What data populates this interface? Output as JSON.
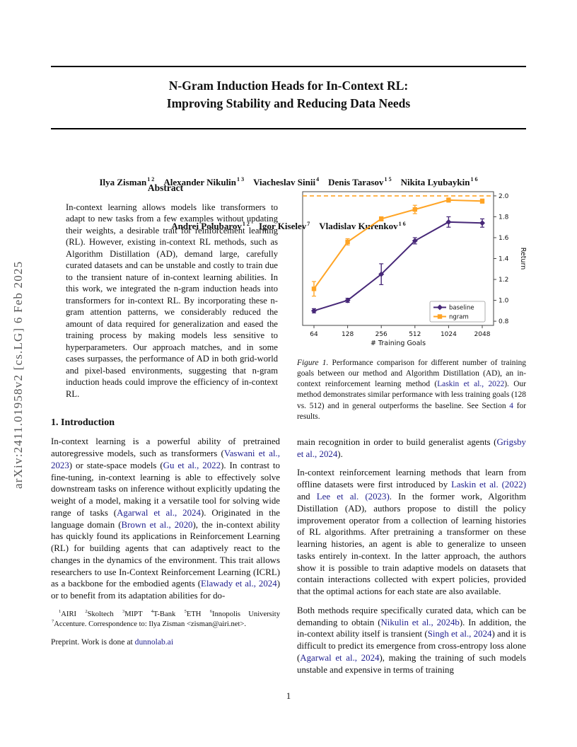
{
  "watermark": {
    "text": "arXiv:2411.01958v2  [cs.LG]  6 Feb 2025"
  },
  "title": {
    "line1": "N-Gram Induction Heads for In-Context RL:",
    "line2": "Improving Stability and Reducing Data Needs"
  },
  "authors": {
    "line1": [
      {
        "t": "Ilya Zisman"
      },
      {
        "t": "1 2",
        "s": "sup"
      },
      {
        "t": " "
      },
      {
        "t": "Alexander Nikulin"
      },
      {
        "t": "1 3",
        "s": "sup"
      },
      {
        "t": " "
      },
      {
        "t": "Viacheslav Sinii"
      },
      {
        "t": "4",
        "s": "sup"
      },
      {
        "t": " "
      },
      {
        "t": "Denis Tarasov"
      },
      {
        "t": "1 5",
        "s": "sup"
      },
      {
        "t": " "
      },
      {
        "t": "Nikita Lyubaykin"
      },
      {
        "t": "1 6",
        "s": "sup"
      }
    ],
    "line2": [
      {
        "t": "Andrei Polubarov"
      },
      {
        "t": "1 2",
        "s": "sup"
      },
      {
        "t": " "
      },
      {
        "t": "Igor Kiselev"
      },
      {
        "t": "7",
        "s": "sup"
      },
      {
        "t": " "
      },
      {
        "t": "Vladislav Kurenkov"
      },
      {
        "t": "1 6",
        "s": "sup"
      }
    ]
  },
  "abstract": {
    "heading": "Abstract",
    "body": "In-context learning allows models like transformers to adapt to new tasks from a few examples without updating their weights, a desirable trait for reinforcement learning (RL). However, existing in-context RL methods, such as Algorithm Distillation (AD), demand large, carefully curated datasets and can be unstable and costly to train due to the transient nature of in-context learning abilities. In this work, we integrated the n-gram induction heads into transformers for in-context RL. By incorporating these n-gram attention patterns, we considerably reduced the amount of data required for generalization and eased the training process by making models less sensitive to hyperparameters. Our approach matches, and in some cases surpasses, the performance of AD in both grid-world and pixel-based environments, suggesting that n-gram induction heads could improve the efficiency of in-context RL."
  },
  "sections": {
    "intro_heading": "1. Introduction"
  },
  "left_column": {
    "intro": [
      {
        "t": "In-context learning is a powerful ability of pretrained autoregressive models, such as transformers ("
      },
      {
        "t": "Vaswani et al., 2023",
        "s": "link"
      },
      {
        "t": ") or state-space models ("
      },
      {
        "t": "Gu et al., 2022",
        "s": "link"
      },
      {
        "t": "). In contrast to fine-tuning, in-context learning is able to effectively solve downstream tasks on inference without explicitly updating the weight of a model, making it a versatile tool for solving wide range of tasks ("
      },
      {
        "t": "Agarwal et al., 2024",
        "s": "link"
      },
      {
        "t": "). Originated in the language domain ("
      },
      {
        "t": "Brown et al., 2020",
        "s": "link"
      },
      {
        "t": "), the in-context ability has quickly found its applications in Reinforcement Learning (RL) for building agents that can adaptively react to the changes in the dynamics of the environment. This trait allows researchers to use In-Context Reinforcement Learning (ICRL) as a backbone for the embodied agents ("
      },
      {
        "t": "Elawady et al., 2024",
        "s": "link"
      },
      {
        "t": ") or to benefit from its adaptation abilities for do-"
      }
    ],
    "footnote": [
      {
        "t": "1",
        "s": "sup"
      },
      {
        "t": "AIRI "
      },
      {
        "t": "2",
        "s": "sup"
      },
      {
        "t": "Skoltech "
      },
      {
        "t": "3",
        "s": "sup"
      },
      {
        "t": "MIPT "
      },
      {
        "t": "4",
        "s": "sup"
      },
      {
        "t": "T-Bank "
      },
      {
        "t": "5",
        "s": "sup"
      },
      {
        "t": "ETH "
      },
      {
        "t": "6",
        "s": "sup"
      },
      {
        "t": "Innopolis University "
      },
      {
        "t": "7",
        "s": "sup"
      },
      {
        "t": "Accenture. Correspondence to: Ilya Zisman <zisman@airi.net>."
      }
    ],
    "preprint": [
      {
        "t": "Preprint. Work is done at "
      },
      {
        "t": "dunnolab.ai",
        "s": "link"
      }
    ]
  },
  "right_column": {
    "caption": [
      {
        "t": "Figure 1.",
        "s": "italic"
      },
      {
        "t": " Performance comparison for different number of training goals between our method and Algorithm Distillation (AD), an in-context reinforcement learning method ("
      },
      {
        "t": "Laskin et al., 2022",
        "s": "link"
      },
      {
        "t": "). Our method demonstrates similar performance with less training goals (128 vs. 512) and in general outperforms the baseline. See Section "
      },
      {
        "t": "4",
        "s": "link"
      },
      {
        "t": " for results."
      }
    ],
    "p1": [
      {
        "t": "main recognition in order to build generalist agents ("
      },
      {
        "t": "Grigsby et al., 2024",
        "s": "link"
      },
      {
        "t": ")."
      }
    ],
    "p2": [
      {
        "t": "In-context reinforcement learning methods that learn from offline datasets were first introduced by "
      },
      {
        "t": "Laskin et al. (2022)",
        "s": "link"
      },
      {
        "t": " and "
      },
      {
        "t": "Lee et al. (2023)",
        "s": "link"
      },
      {
        "t": ". In the former work, Algorithm Distillation (AD), authors propose to distill the policy improvement operator from a collection of learning histories of RL algorithms. After pretraining a transformer on these learning histories, an agent is able to generalize to unseen tasks entirely in-context. In the latter approach, the authors show it is possible to train adaptive models on datasets that contain interactions collected with expert policies, provided that the optimal actions for each state are also available."
      }
    ],
    "p3": [
      {
        "t": "Both methods require specifically curated data, which can be demanding to obtain ("
      },
      {
        "t": "Nikulin et al., 2024b",
        "s": "link"
      },
      {
        "t": "). In addition, the in-context ability itself is transient ("
      },
      {
        "t": "Singh et al., 2024",
        "s": "link"
      },
      {
        "t": ") and it is difficult to predict its emergence from cross-entropy loss alone ("
      },
      {
        "t": "Agarwal et al., 2024",
        "s": "link"
      },
      {
        "t": "), making the training of such models unstable and expensive in terms of training"
      }
    ]
  },
  "page": {
    "number": "1"
  },
  "chart_data": {
    "type": "line",
    "title": "",
    "xlabel": "# Training Goals",
    "ylabel": "Return",
    "x_ticks": [
      "64",
      "128",
      "256",
      "512",
      "1024",
      "2048"
    ],
    "y_ticks": [
      0.8,
      1.0,
      1.2,
      1.4,
      1.6,
      1.8,
      2.0
    ],
    "ylim": [
      0.76,
      2.04
    ],
    "grid": false,
    "legend_position": "lower right",
    "reference_line": {
      "y": 2.0,
      "style": "dashed",
      "color": "#FFA425"
    },
    "series": [
      {
        "name": "baseline",
        "color": "#472878",
        "marker": "diamond",
        "values": [
          0.9,
          1.0,
          1.25,
          1.57,
          1.75,
          1.74
        ],
        "errors": [
          0.02,
          0.02,
          0.1,
          0.03,
          0.05,
          0.04
        ]
      },
      {
        "name": "ngram",
        "color": "#FFA425",
        "marker": "square",
        "values": [
          1.11,
          1.56,
          1.78,
          1.87,
          1.96,
          1.95
        ],
        "errors": [
          0.07,
          0.03,
          0.02,
          0.04,
          0.02,
          0.02
        ]
      }
    ]
  }
}
